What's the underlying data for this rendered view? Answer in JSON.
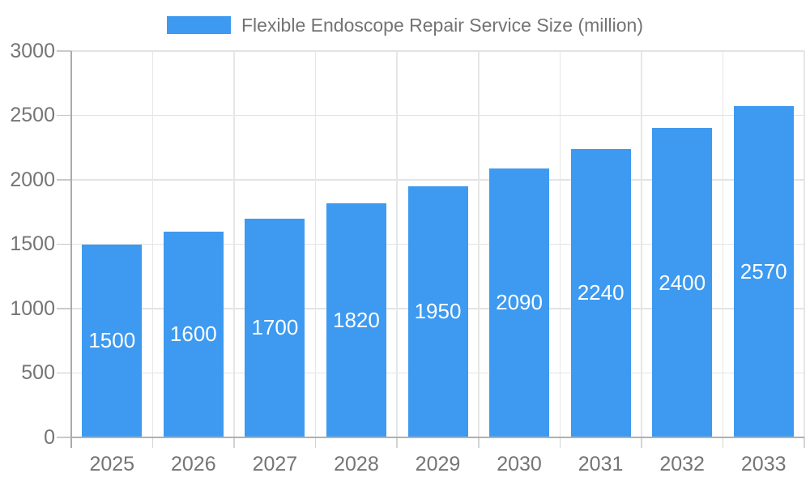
{
  "chart_data": {
    "type": "bar",
    "title": "Flexible Endoscope Repair Service Size (million)",
    "categories": [
      "2025",
      "2026",
      "2027",
      "2028",
      "2029",
      "2030",
      "2031",
      "2032",
      "2033"
    ],
    "values": [
      1500,
      1600,
      1700,
      1820,
      1950,
      2090,
      2240,
      2400,
      2570
    ],
    "xlabel": "",
    "ylabel": "",
    "ylim": [
      0,
      3000
    ],
    "yticks": [
      0,
      500,
      1000,
      1500,
      2000,
      2500,
      3000
    ],
    "grid": true,
    "legend_position": "top-center",
    "bar_color": "#3D9AF0",
    "value_label_color": "#ffffff",
    "axis_label_color": "#757575",
    "legend_text_color": "#737373"
  }
}
